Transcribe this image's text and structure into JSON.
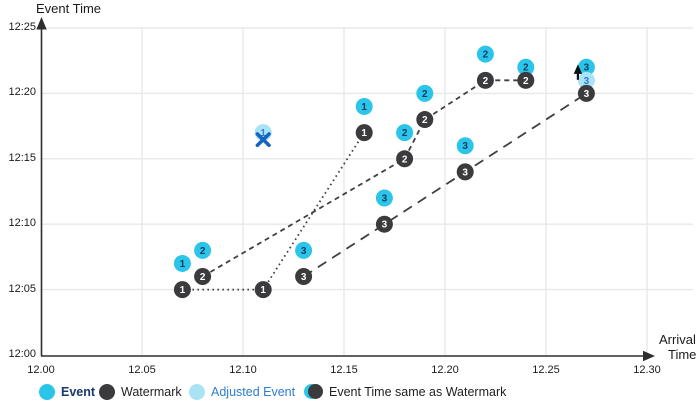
{
  "axes": {
    "y_title": "Event Time",
    "x_title_line1": "Arrival",
    "x_title_line2": "Time",
    "y_ticks": [
      "12:25",
      "12:20",
      "12:15",
      "12:10",
      "12:05",
      "12:00"
    ],
    "x_ticks": [
      "12.00",
      "12.05",
      "12.10",
      "12.15",
      "12.20",
      "12.25",
      "12.30"
    ]
  },
  "colors": {
    "event": "#2bc5ea",
    "watermark": "#3b3b3d",
    "adjusted": "#abe3f6",
    "event_number_text": "#123a63",
    "adjusted_number_text": "#2b7cd3",
    "watermark_number_text": "#ffffff",
    "watermark_line": "#404040",
    "grid": "#e8e8e8",
    "axis": "#2e2e2e",
    "x_mark": "#1565c0",
    "up_arrow": "#111111",
    "legend_event_text": "#17386b",
    "legend_adjusted_text": "#2b7cd3",
    "legend_dark_text": "#1f1f1f"
  },
  "legend": [
    {
      "label": "Event",
      "marker": "event"
    },
    {
      "label": "Watermark",
      "marker": "watermark"
    },
    {
      "label": "Adjusted Event",
      "marker": "adjusted"
    },
    {
      "label": "Event Time same as Watermark",
      "marker": "overlap"
    }
  ],
  "chart_data": {
    "type": "scatter",
    "title": "",
    "xlabel": "Arrival Time",
    "ylabel": "Event Time",
    "x_range": [
      12.0,
      12.3
    ],
    "y_range": [
      "12:00",
      "12:25"
    ],
    "grid": true,
    "events": [
      {
        "n": 1,
        "arrival": 12.07,
        "event_time": "12:07"
      },
      {
        "n": 2,
        "arrival": 12.08,
        "event_time": "12:08"
      },
      {
        "n": 3,
        "arrival": 12.13,
        "event_time": "12:08"
      },
      {
        "n": 1,
        "arrival": 12.16,
        "event_time": "12:19"
      },
      {
        "n": 3,
        "arrival": 12.17,
        "event_time": "12:12"
      },
      {
        "n": 2,
        "arrival": 12.18,
        "event_time": "12:17"
      },
      {
        "n": 2,
        "arrival": 12.19,
        "event_time": "12:20"
      },
      {
        "n": 3,
        "arrival": 12.21,
        "event_time": "12:16"
      },
      {
        "n": 2,
        "arrival": 12.22,
        "event_time": "12:23"
      },
      {
        "n": 2,
        "arrival": 12.24,
        "event_time": "12:22"
      },
      {
        "n": 3,
        "arrival": 12.27,
        "event_time": "12:22"
      }
    ],
    "adjusted_events": [
      {
        "n": 1,
        "arrival": 12.11,
        "event_time": "12:17",
        "crossed_out": true
      },
      {
        "n": 3,
        "arrival": 12.27,
        "event_time": "12:21",
        "arrow_up": true
      }
    ],
    "watermarks": [
      {
        "n": 1,
        "arrival": 12.07,
        "event_time": "12:05"
      },
      {
        "n": 2,
        "arrival": 12.08,
        "event_time": "12:06"
      },
      {
        "n": 1,
        "arrival": 12.11,
        "event_time": "12:05"
      },
      {
        "n": 3,
        "arrival": 12.13,
        "event_time": "12:06"
      },
      {
        "n": 1,
        "arrival": 12.16,
        "event_time": "12:17"
      },
      {
        "n": 3,
        "arrival": 12.17,
        "event_time": "12:10"
      },
      {
        "n": 2,
        "arrival": 12.18,
        "event_time": "12:15"
      },
      {
        "n": 2,
        "arrival": 12.19,
        "event_time": "12:18"
      },
      {
        "n": 3,
        "arrival": 12.21,
        "event_time": "12:14"
      },
      {
        "n": 2,
        "arrival": 12.22,
        "event_time": "12:21"
      },
      {
        "n": 2,
        "arrival": 12.24,
        "event_time": "12:21"
      },
      {
        "n": 3,
        "arrival": 12.27,
        "event_time": "12:20"
      }
    ],
    "watermark_lines": [
      {
        "series": 1,
        "style": "dotted",
        "points": [
          [
            12.07,
            "12:05"
          ],
          [
            12.11,
            "12:05"
          ],
          [
            12.16,
            "12:17"
          ]
        ]
      },
      {
        "series": 2,
        "style": "dashed",
        "points": [
          [
            12.08,
            "12:06"
          ],
          [
            12.18,
            "12:15"
          ],
          [
            12.19,
            "12:18"
          ],
          [
            12.22,
            "12:21"
          ],
          [
            12.24,
            "12:21"
          ]
        ]
      },
      {
        "series": 3,
        "style": "long-dash",
        "points": [
          [
            12.13,
            "12:06"
          ],
          [
            12.17,
            "12:10"
          ],
          [
            12.21,
            "12:14"
          ],
          [
            12.27,
            "12:20"
          ]
        ]
      }
    ]
  }
}
